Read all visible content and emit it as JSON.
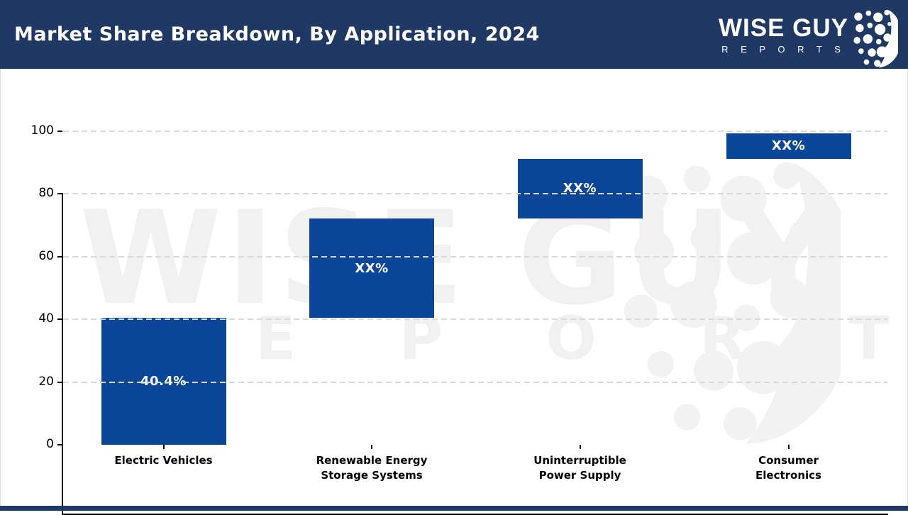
{
  "header": {
    "title": "Market Share Breakdown, By Application, 2024",
    "logo": {
      "name": "WISE GUY",
      "sub": "R E P O R T S"
    }
  },
  "watermark": {
    "line1": "WISE GUY",
    "line2": "R E P O R T S"
  },
  "chart_data": {
    "type": "bar",
    "subtype": "waterfall",
    "title": "Market Share Breakdown, By Application, 2024",
    "unit": "%",
    "categories": [
      "Electric Vehicles",
      "Renewable Energy\nStorage Systems",
      "Uninterruptible\nPower Supply",
      "Consumer\nElectronics"
    ],
    "segments": [
      {
        "category": "Electric Vehicles",
        "start": 0,
        "end": 40.4,
        "label": "40.4%",
        "masked": false
      },
      {
        "category": "Renewable Energy Storage Systems",
        "start": 40.4,
        "end": 72.2,
        "label": "XX%",
        "masked": true
      },
      {
        "category": "Uninterruptible Power Supply",
        "start": 72.2,
        "end": 91.2,
        "label": "XX%",
        "masked": true
      },
      {
        "category": "Consumer Electronics",
        "start": 91.2,
        "end": 99.4,
        "label": "XX%",
        "masked": true
      }
    ],
    "y_ticks": [
      0,
      20,
      40,
      60,
      80,
      100
    ],
    "ylim": [
      0,
      102.3
    ],
    "grid": {
      "horizontal": true,
      "style": "dashed",
      "color": "#d9d9d9"
    },
    "legend": null,
    "bar_color": "#0c4699",
    "bar_label_color": "#ffffff"
  },
  "colors": {
    "header_bg": "#1f3864",
    "footer_bg": "#1f3864",
    "bar": "#0c4699",
    "axis": "#000000",
    "grid": "#d9d9d9",
    "watermark": "#f1f1f1",
    "frame_border": "#d9d9d9"
  }
}
